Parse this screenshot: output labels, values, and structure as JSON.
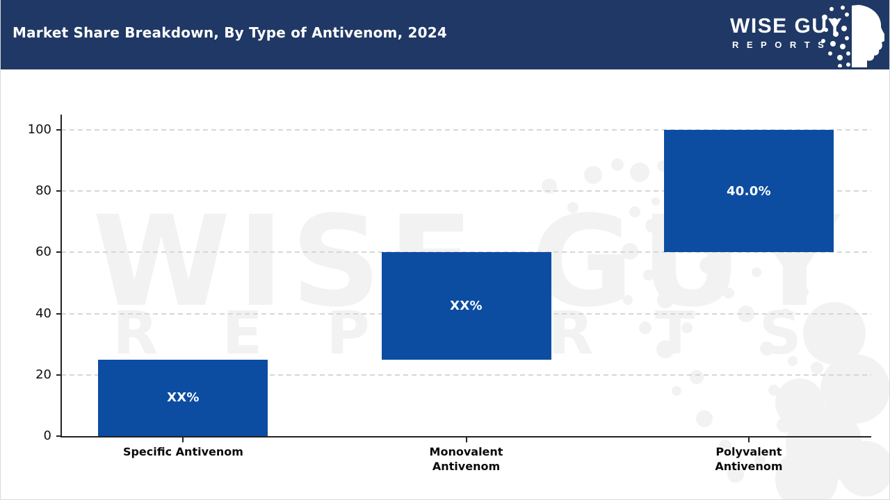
{
  "header": {
    "title": "Market Share Breakdown, By Type of Antivenom, 2024",
    "logo": {
      "primary": "WISE GUY",
      "secondary": "REPORTS"
    }
  },
  "watermark": {
    "primary": "WISE GUY",
    "secondary": "REPORTS"
  },
  "chart_data": {
    "type": "bar",
    "subtype": "floating-waterfall",
    "title": "Market Share Breakdown, By Type of Antivenom, 2024",
    "categories": [
      "Specific Antivenom",
      "Monovalent\nAntivenom",
      "Polyvalent\nAntivenom"
    ],
    "bars": [
      {
        "category": "Specific Antivenom",
        "start": 0,
        "end": 25,
        "label": "XX%"
      },
      {
        "category": "Monovalent Antivenom",
        "start": 25,
        "end": 60,
        "label": "XX%"
      },
      {
        "category": "Polyvalent Antivenom",
        "start": 60,
        "end": 100,
        "label": "40.0%"
      }
    ],
    "yticks": [
      0,
      20,
      40,
      60,
      80,
      100
    ],
    "ylim": [
      0,
      100
    ],
    "xlabel": "",
    "ylabel": "",
    "grid": "horizontal-dashed",
    "legend": "none",
    "bar_color": "#0c4da2"
  },
  "colors": {
    "header_bg": "#1f3865",
    "bar": "#0c4da2",
    "bar_label": "#ffffff",
    "grid": "#d6d6d6",
    "axis": "#222222",
    "watermark": "#f2f2f2",
    "border": "#d9d9d9"
  }
}
